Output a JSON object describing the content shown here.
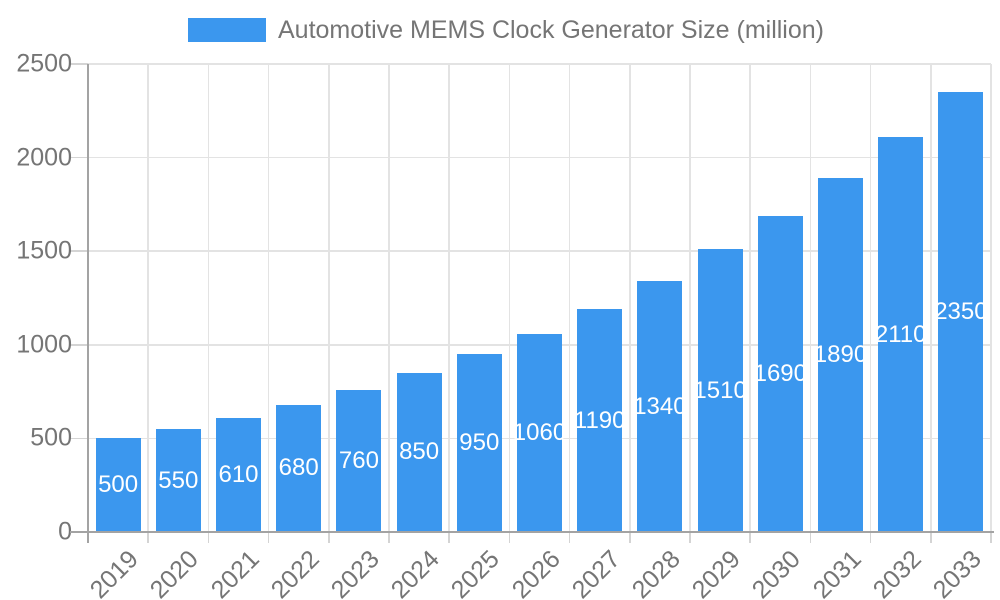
{
  "legend": {
    "label": "Automotive MEMS Clock Generator Size (million)"
  },
  "colors": {
    "bar": "#3b97ee",
    "grid": "#e3e3e3",
    "tick": "#d4d4d4",
    "axis_line": "#a3a3a3",
    "axis_text": "#757575",
    "value_label": "#ffffff",
    "background": "#ffffff"
  },
  "chart_data": {
    "type": "bar",
    "title": "",
    "legend": [
      "Automotive MEMS Clock Generator Size (million)"
    ],
    "legend_position": "top",
    "categories": [
      "2019",
      "2020",
      "2021",
      "2022",
      "2023",
      "2024",
      "2025",
      "2026",
      "2027",
      "2028",
      "2029",
      "2030",
      "2031",
      "2032",
      "2033"
    ],
    "values": [
      500,
      550,
      610,
      680,
      760,
      850,
      950,
      1060,
      1190,
      1340,
      1510,
      1690,
      1890,
      2110,
      2350
    ],
    "value_labels_visible": true,
    "value_label_position": "center-inside",
    "xlabel": "",
    "ylabel": "",
    "ylim": [
      0,
      2500
    ],
    "yticks": [
      0,
      500,
      1000,
      1500,
      2000,
      2500
    ],
    "grid": true,
    "x_tick_rotation_deg": -45
  }
}
